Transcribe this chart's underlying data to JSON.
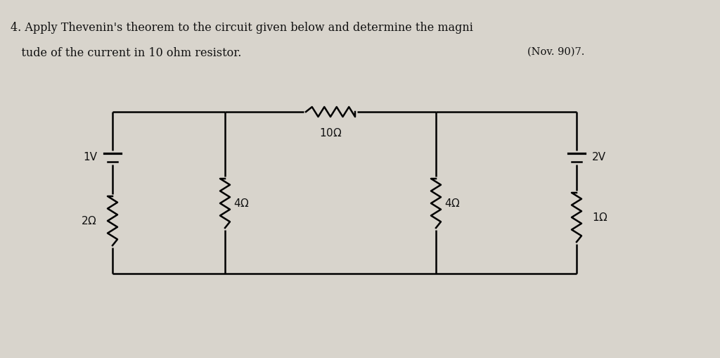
{
  "title_line1": "4. Apply Thevenin's theorem to the circuit given below and determine the magni",
  "title_line2": "   tude of the current in 10 ohm resistor.",
  "title_line3": "(Nov. 90)7.",
  "background_color": "#d8d4cc",
  "text_color": "#111111",
  "fig_width": 10.24,
  "fig_height": 5.09,
  "font_size_title": 11.5
}
